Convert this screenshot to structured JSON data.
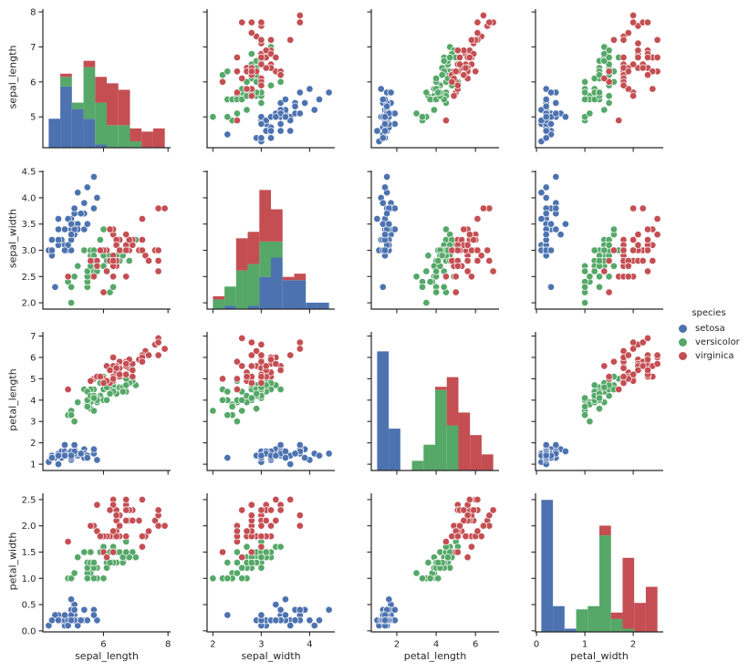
{
  "figure": {
    "background": "#ffffff",
    "axis_color": "#262626",
    "text_color": "#262626"
  },
  "legend": {
    "title": "species",
    "items": [
      {
        "label": "setosa",
        "color": "#4c72b0"
      },
      {
        "label": "versicolor",
        "color": "#55a868"
      },
      {
        "label": "virginica",
        "color": "#c44e52"
      }
    ]
  },
  "chart_data": {
    "type": "scatter-matrix-pairplot",
    "dataset": "iris",
    "hue": "species",
    "diagonal": "stacked-histogram-10-bins",
    "grid": false,
    "legend_position": "right-center",
    "variables": [
      "sepal_length",
      "sepal_width",
      "petal_length",
      "petal_width"
    ],
    "axes": {
      "sepal_length": {
        "xticks": {
          "values": [
            6,
            8
          ],
          "labels": [
            "6",
            "8"
          ]
        },
        "yticks": {
          "values": [
            5,
            6,
            7,
            8
          ],
          "labels": [
            "5",
            "6",
            "7",
            "8"
          ]
        }
      },
      "sepal_width": {
        "xticks": {
          "values": [
            2,
            3,
            4
          ],
          "labels": [
            "2",
            "3",
            "4"
          ]
        },
        "yticks": {
          "values": [
            2.0,
            2.5,
            3.0,
            3.5,
            4.0,
            4.5
          ],
          "labels": [
            "2.0",
            "2.5",
            "3.0",
            "3.5",
            "4.0",
            "4.5"
          ]
        }
      },
      "petal_length": {
        "xticks": {
          "values": [
            2,
            4,
            6
          ],
          "labels": [
            "2",
            "4",
            "6"
          ]
        },
        "yticks": {
          "values": [
            1,
            2,
            3,
            4,
            5,
            6,
            7
          ],
          "labels": [
            "1",
            "2",
            "3",
            "4",
            "5",
            "6",
            "7"
          ]
        }
      },
      "petal_width": {
        "xticks": {
          "values": [
            0,
            1,
            2
          ],
          "labels": [
            "0",
            "1",
            "2"
          ]
        },
        "yticks": {
          "values": [
            0.0,
            0.5,
            1.0,
            1.5,
            2.0,
            2.5
          ],
          "labels": [
            "0.0",
            "0.5",
            "1.0",
            "1.5",
            "2.0",
            "2.5"
          ]
        }
      }
    },
    "series": [
      {
        "name": "setosa",
        "color": "#4c72b0",
        "sepal_length": [
          5.1,
          4.9,
          4.7,
          4.6,
          5.0,
          5.4,
          4.6,
          5.0,
          4.4,
          4.9,
          5.4,
          4.8,
          4.8,
          4.3,
          5.8,
          5.7,
          5.4,
          5.1,
          5.7,
          5.1,
          5.4,
          5.1,
          4.6,
          5.1,
          4.8,
          5.0,
          5.0,
          5.2,
          5.2,
          4.7,
          4.8,
          5.4,
          5.2,
          5.5,
          4.9,
          5.0,
          5.5,
          4.9,
          4.4,
          5.1,
          5.0,
          4.5,
          4.4,
          5.0,
          5.1,
          4.8,
          5.1,
          4.6,
          5.3,
          5.0
        ],
        "sepal_width": [
          3.5,
          3.0,
          3.2,
          3.1,
          3.6,
          3.9,
          3.4,
          3.4,
          2.9,
          3.1,
          3.7,
          3.4,
          3.0,
          3.0,
          4.0,
          4.4,
          3.9,
          3.5,
          3.8,
          3.8,
          3.4,
          3.7,
          3.6,
          3.3,
          3.4,
          3.0,
          3.4,
          3.5,
          3.4,
          3.2,
          3.1,
          3.4,
          4.1,
          4.2,
          3.1,
          3.2,
          3.5,
          3.6,
          3.0,
          3.4,
          3.5,
          2.3,
          3.2,
          3.5,
          3.8,
          3.0,
          3.8,
          3.2,
          3.7,
          3.3
        ],
        "petal_length": [
          1.4,
          1.4,
          1.3,
          1.5,
          1.4,
          1.7,
          1.4,
          1.5,
          1.4,
          1.5,
          1.5,
          1.6,
          1.4,
          1.1,
          1.2,
          1.5,
          1.3,
          1.4,
          1.7,
          1.5,
          1.7,
          1.5,
          1.0,
          1.7,
          1.9,
          1.6,
          1.6,
          1.5,
          1.4,
          1.6,
          1.6,
          1.5,
          1.5,
          1.4,
          1.5,
          1.2,
          1.3,
          1.4,
          1.3,
          1.5,
          1.3,
          1.3,
          1.3,
          1.6,
          1.9,
          1.4,
          1.6,
          1.4,
          1.5,
          1.4
        ],
        "petal_width": [
          0.2,
          0.2,
          0.2,
          0.2,
          0.2,
          0.4,
          0.3,
          0.2,
          0.2,
          0.1,
          0.2,
          0.2,
          0.1,
          0.1,
          0.2,
          0.4,
          0.4,
          0.3,
          0.3,
          0.3,
          0.2,
          0.4,
          0.2,
          0.5,
          0.2,
          0.2,
          0.4,
          0.2,
          0.2,
          0.2,
          0.2,
          0.4,
          0.1,
          0.2,
          0.2,
          0.2,
          0.2,
          0.1,
          0.2,
          0.2,
          0.3,
          0.3,
          0.2,
          0.6,
          0.4,
          0.3,
          0.2,
          0.2,
          0.2,
          0.2
        ]
      },
      {
        "name": "versicolor",
        "color": "#55a868",
        "sepal_length": [
          7.0,
          6.4,
          6.9,
          5.5,
          6.5,
          5.7,
          6.3,
          4.9,
          6.6,
          5.2,
          5.0,
          5.9,
          6.0,
          6.1,
          5.6,
          6.7,
          5.6,
          5.8,
          6.2,
          5.6,
          5.9,
          6.1,
          6.3,
          6.1,
          6.4,
          6.6,
          6.8,
          6.7,
          6.0,
          5.7,
          5.5,
          5.5,
          5.8,
          6.0,
          5.4,
          6.0,
          6.7,
          6.3,
          5.6,
          5.5,
          5.5,
          6.1,
          5.8,
          5.0,
          5.6,
          5.7,
          5.7,
          6.2,
          5.1,
          5.7
        ],
        "sepal_width": [
          3.2,
          3.2,
          3.1,
          2.3,
          2.8,
          2.8,
          3.3,
          2.4,
          2.9,
          2.7,
          2.0,
          3.0,
          2.2,
          2.9,
          2.9,
          3.1,
          3.0,
          2.7,
          2.2,
          2.5,
          3.2,
          2.8,
          2.5,
          2.8,
          2.9,
          3.0,
          2.8,
          3.0,
          2.9,
          2.6,
          2.4,
          2.4,
          2.7,
          2.7,
          3.0,
          3.4,
          3.1,
          2.3,
          3.0,
          2.5,
          2.6,
          3.0,
          2.6,
          2.3,
          2.7,
          3.0,
          2.9,
          2.9,
          2.5,
          2.8
        ],
        "petal_length": [
          4.7,
          4.5,
          4.9,
          4.0,
          4.6,
          4.5,
          4.7,
          3.3,
          4.6,
          3.9,
          3.5,
          4.2,
          4.0,
          4.7,
          3.6,
          4.4,
          4.5,
          4.1,
          4.5,
          3.9,
          4.8,
          4.0,
          4.9,
          4.7,
          4.3,
          4.4,
          4.8,
          5.0,
          4.5,
          3.5,
          3.8,
          3.7,
          3.9,
          5.1,
          4.5,
          4.5,
          4.7,
          4.4,
          4.1,
          4.0,
          4.4,
          4.6,
          4.0,
          3.3,
          4.2,
          4.2,
          4.2,
          4.3,
          3.0,
          4.1
        ],
        "petal_width": [
          1.4,
          1.5,
          1.5,
          1.3,
          1.5,
          1.3,
          1.6,
          1.0,
          1.3,
          1.4,
          1.0,
          1.5,
          1.0,
          1.4,
          1.3,
          1.4,
          1.5,
          1.0,
          1.5,
          1.1,
          1.8,
          1.3,
          1.5,
          1.2,
          1.3,
          1.4,
          1.4,
          1.7,
          1.5,
          1.0,
          1.1,
          1.0,
          1.2,
          1.6,
          1.5,
          1.6,
          1.5,
          1.3,
          1.3,
          1.3,
          1.2,
          1.4,
          1.2,
          1.0,
          1.3,
          1.2,
          1.3,
          1.3,
          1.1,
          1.3
        ]
      },
      {
        "name": "virginica",
        "color": "#c44e52",
        "sepal_length": [
          6.3,
          5.8,
          7.1,
          6.3,
          6.5,
          7.6,
          4.9,
          7.3,
          6.7,
          7.2,
          6.5,
          6.4,
          6.8,
          5.7,
          5.8,
          6.4,
          6.5,
          7.7,
          7.7,
          6.0,
          6.9,
          5.6,
          7.7,
          6.3,
          6.7,
          7.2,
          6.2,
          6.1,
          6.4,
          7.2,
          7.4,
          7.9,
          6.4,
          6.3,
          6.1,
          7.7,
          6.3,
          6.4,
          6.0,
          6.9,
          6.7,
          6.9,
          5.8,
          6.8,
          6.7,
          6.7,
          6.3,
          6.5,
          6.2,
          5.9
        ],
        "sepal_width": [
          3.3,
          2.7,
          3.0,
          2.9,
          3.0,
          3.0,
          2.5,
          2.9,
          2.5,
          3.6,
          3.2,
          2.7,
          3.0,
          2.5,
          2.8,
          3.2,
          3.0,
          3.8,
          2.6,
          2.2,
          3.2,
          2.8,
          2.8,
          2.7,
          3.3,
          3.2,
          2.8,
          3.0,
          2.8,
          3.0,
          2.8,
          3.8,
          2.8,
          2.8,
          2.6,
          3.0,
          3.4,
          3.1,
          3.0,
          3.1,
          3.1,
          3.1,
          2.7,
          3.2,
          3.3,
          3.0,
          2.5,
          3.0,
          3.4,
          3.0
        ],
        "petal_length": [
          6.0,
          5.1,
          5.9,
          5.6,
          5.8,
          6.6,
          4.5,
          6.3,
          5.8,
          6.1,
          5.1,
          5.3,
          5.5,
          5.0,
          5.1,
          5.3,
          5.5,
          6.7,
          6.9,
          5.0,
          5.7,
          4.9,
          6.7,
          4.9,
          5.7,
          6.0,
          4.8,
          4.9,
          5.6,
          5.8,
          6.1,
          6.4,
          5.6,
          5.1,
          5.6,
          6.1,
          5.6,
          5.5,
          4.8,
          5.4,
          5.6,
          5.1,
          5.1,
          5.9,
          5.7,
          5.2,
          5.0,
          5.2,
          5.4,
          5.1
        ],
        "petal_width": [
          2.5,
          1.9,
          2.1,
          1.8,
          2.2,
          2.1,
          1.7,
          1.8,
          1.8,
          2.5,
          2.0,
          1.9,
          2.1,
          2.0,
          2.4,
          2.3,
          1.8,
          2.2,
          2.3,
          1.5,
          2.3,
          2.0,
          2.0,
          1.8,
          2.1,
          1.8,
          1.8,
          1.8,
          2.1,
          1.6,
          1.9,
          2.0,
          2.2,
          1.5,
          1.4,
          2.3,
          2.4,
          1.8,
          1.8,
          2.1,
          2.4,
          2.3,
          1.9,
          2.3,
          2.5,
          2.3,
          1.9,
          2.0,
          2.3,
          1.8
        ]
      }
    ]
  }
}
